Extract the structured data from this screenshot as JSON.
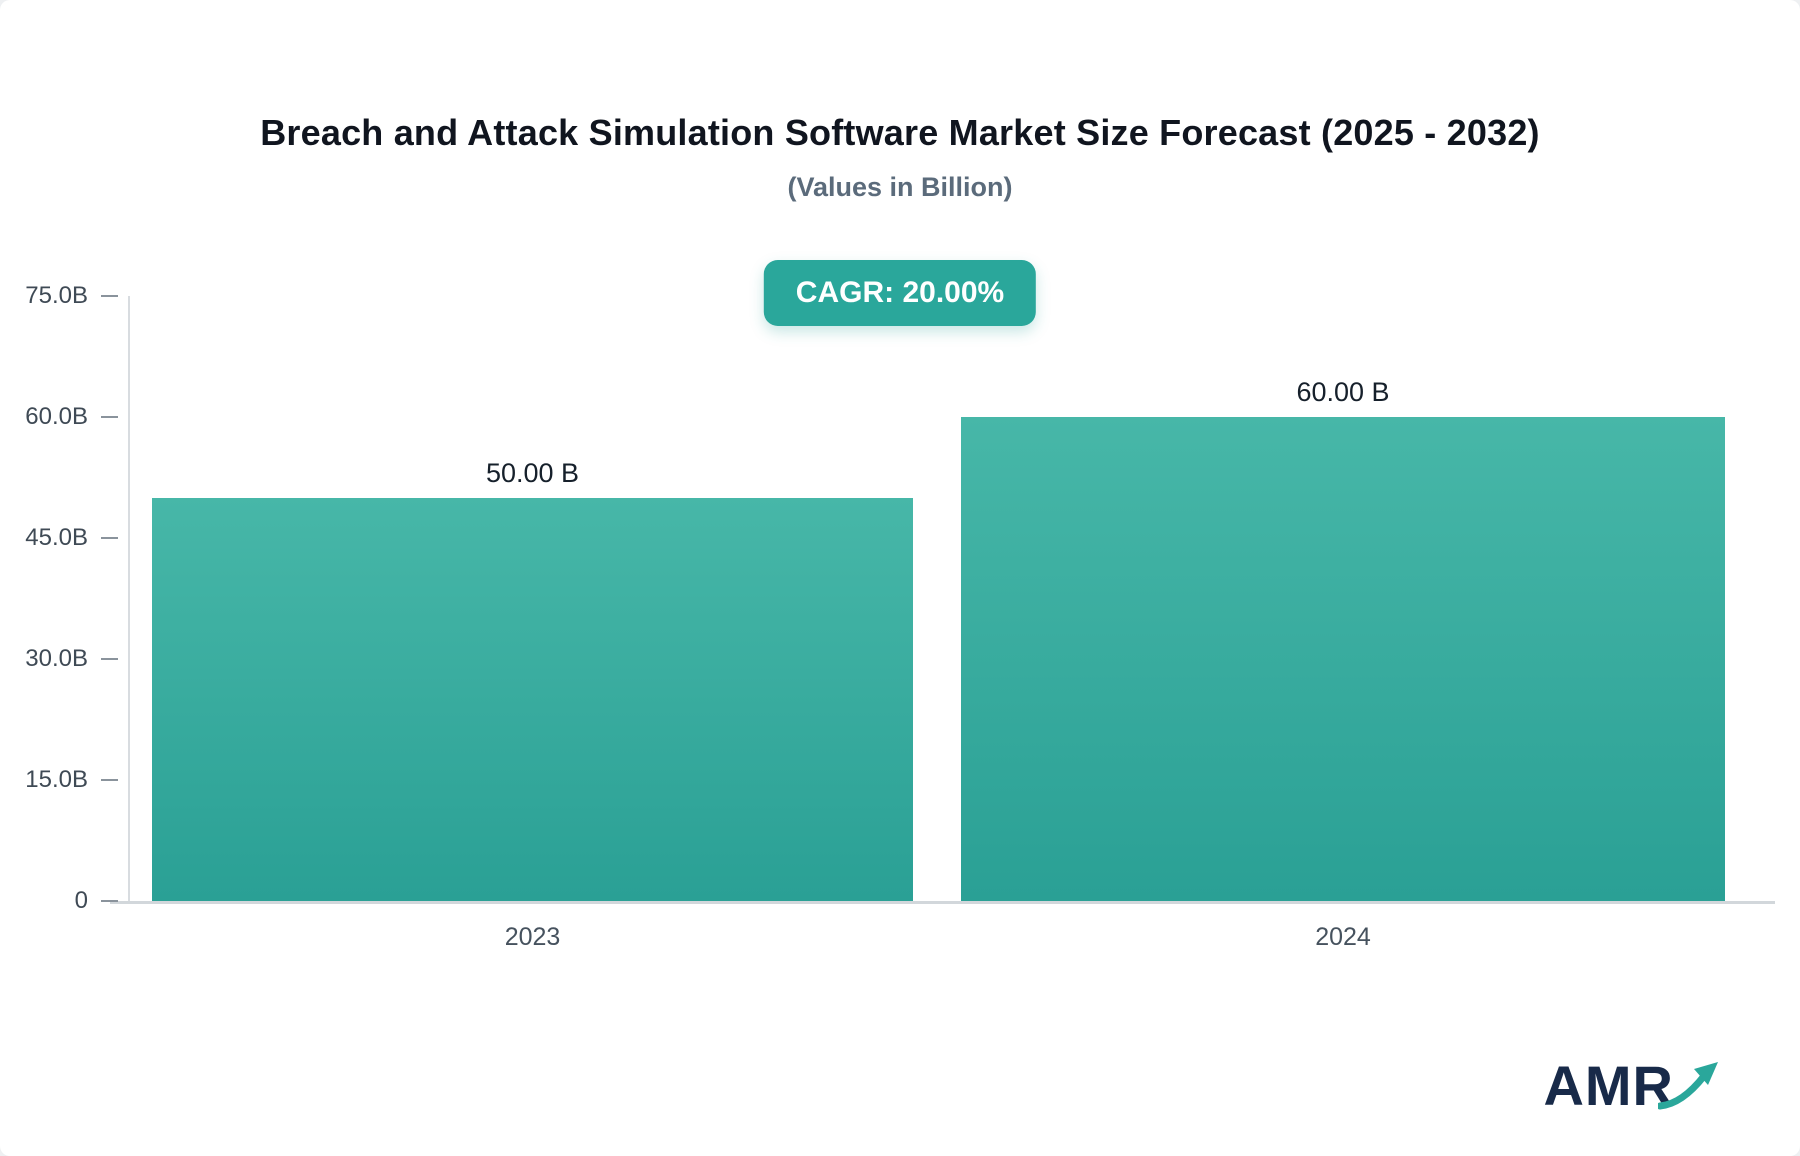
{
  "chart_data": {
    "type": "bar",
    "title": "Breach and Attack Simulation Software Market Size Forecast (2025 - 2032)",
    "subtitle": "(Values in Billion)",
    "badge": "CAGR: 20.00%",
    "categories": [
      "2023",
      "2024"
    ],
    "values": [
      50,
      60
    ],
    "value_labels": [
      "50.00 B",
      "60.00 B"
    ],
    "ylim": [
      0,
      75
    ],
    "yticks": [
      {
        "value": 75,
        "label": "75.0B"
      },
      {
        "value": 60,
        "label": "60.0B"
      },
      {
        "value": 45,
        "label": "45.0B"
      },
      {
        "value": 30,
        "label": "30.0B"
      },
      {
        "value": 15,
        "label": "15.0B"
      },
      {
        "value": 0,
        "label": "0"
      }
    ],
    "grid": false,
    "legend": false,
    "colors": {
      "bar_top": "#47b7a8",
      "bar_bottom": "#2aa095",
      "badge_bg": "#2aa79b",
      "accent": "#2aa79b"
    }
  },
  "logo": {
    "text": "AMR"
  }
}
